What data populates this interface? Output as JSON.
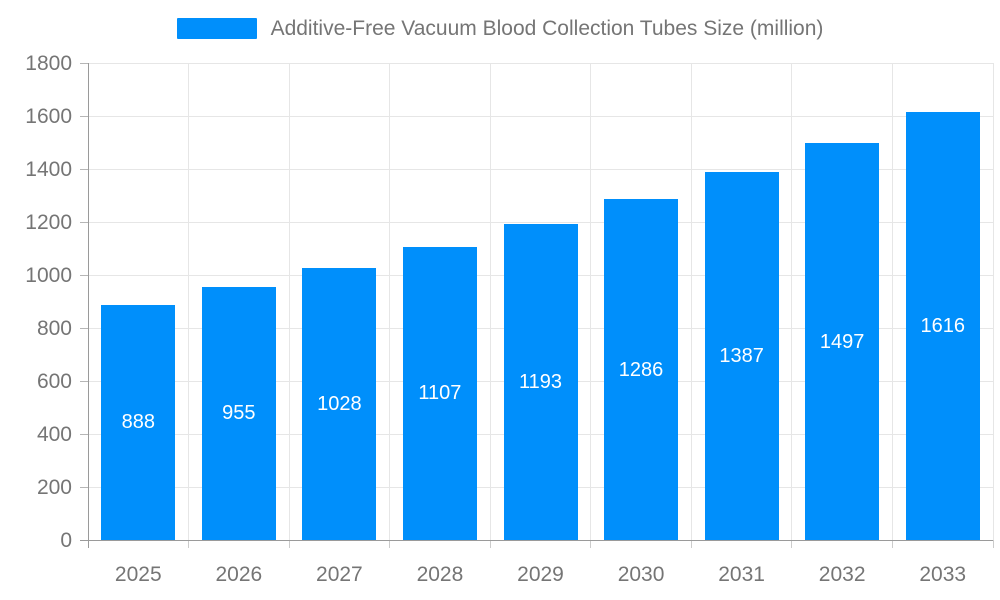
{
  "legend": {
    "label": "Additive-Free Vacuum Blood Collection Tubes Size (million)",
    "swatch_color": "#008FFB"
  },
  "chart_data": {
    "type": "bar",
    "title": "Additive-Free Vacuum Blood Collection Tubes Size (million)",
    "categories": [
      "2025",
      "2026",
      "2027",
      "2028",
      "2029",
      "2030",
      "2031",
      "2032",
      "2033"
    ],
    "values": [
      888,
      955,
      1028,
      1107,
      1193,
      1286,
      1387,
      1497,
      1616
    ],
    "xlabel": "",
    "ylabel": "",
    "ylim": [
      0,
      1800
    ],
    "ytick_step": 200,
    "ytick_labels": [
      "0",
      "200",
      "400",
      "600",
      "800",
      "1000",
      "1200",
      "1400",
      "1600",
      "1800"
    ],
    "grid": true,
    "legend_position": "top",
    "bar_color": "#008FFB",
    "value_label_color": "#ffffff",
    "axis_label_color": "#757575"
  }
}
